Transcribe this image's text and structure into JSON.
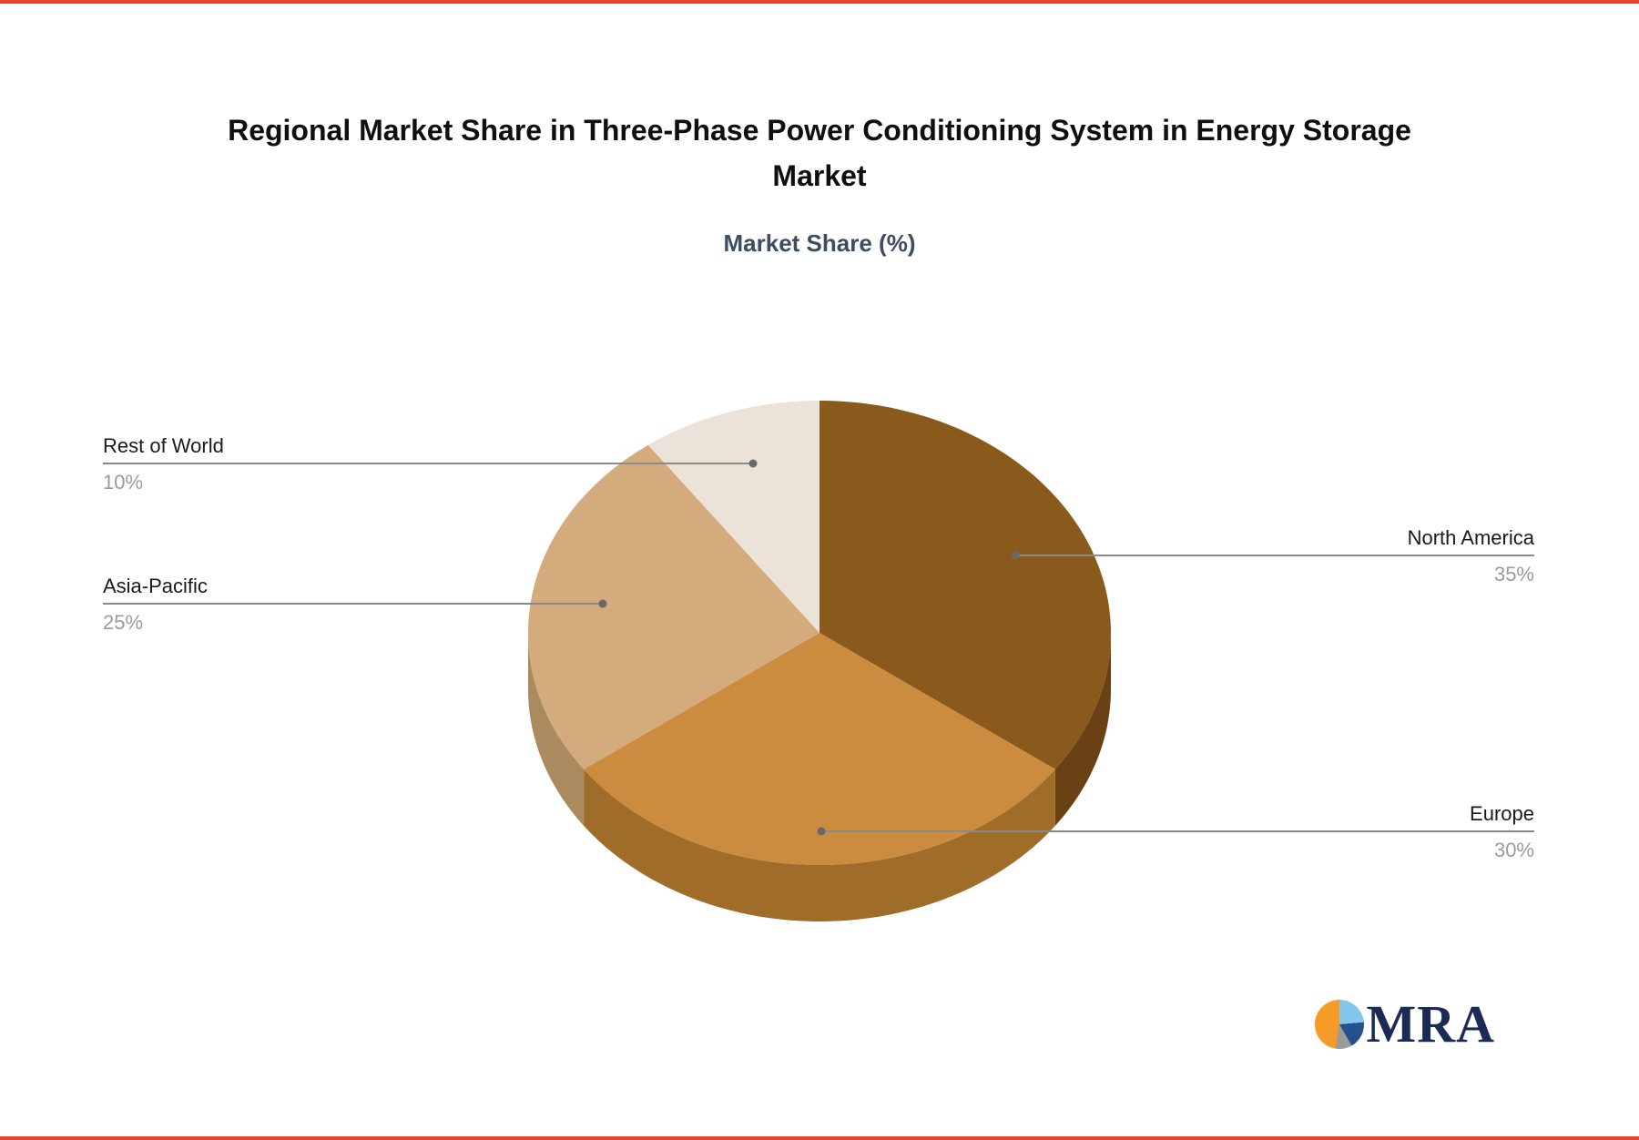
{
  "page": {
    "background": "#ffffff",
    "frame_color": "#e8432c"
  },
  "header": {
    "title_lines": [
      "Regional Market Share in Three-Phase Power Conditioning System in Energy Storage",
      "Market"
    ],
    "title_full": "Regional Market Share in Three-Phase Power Conditioning System in Energy Storage Market",
    "subtitle": "Market Share (%)",
    "subtitle_color": "#3d4c63",
    "title_color": "#0f0f0f"
  },
  "chart_data": {
    "type": "pie",
    "style": "3d",
    "title": "Regional Market Share in Three-Phase Power Conditioning System in Energy Storage Market",
    "subtitle": "Market Share (%)",
    "unit": "%",
    "labels": [
      "North America",
      "Europe",
      "Asia-Pacific",
      "Rest of World"
    ],
    "values": [
      35,
      30,
      25,
      10
    ],
    "display_values": [
      "35%",
      "30%",
      "25%",
      "10%"
    ],
    "slice_colors": [
      "#8a591c",
      "#cb8c3f",
      "#d3ab7d",
      "#ebe3d8"
    ],
    "slice_side_colors": [
      "#6a4114",
      "#a06c29",
      "#aa8a5e",
      "#d8cdbf"
    ],
    "start_angle_deg": -90,
    "direction": "clockwise",
    "legend": "none",
    "label_style": "callout-lines",
    "callout_line_color": "#8a8a8a",
    "callout_dot_color": "#696969",
    "label_name_color": "#1a1a1a",
    "label_value_color": "#9b9b9b"
  },
  "branding": {
    "logo_text": "MRA",
    "logo_text_color": "#1b2b55",
    "logo_icon": "pie-chart-icon",
    "icon_segments": [
      {
        "color": "#85c6ec",
        "from": 0,
        "to": 85
      },
      {
        "color": "#27508f",
        "from": 85,
        "to": 150
      },
      {
        "color": "#9b9b9b",
        "from": 150,
        "to": 190
      },
      {
        "color": "#f49b28",
        "from": 190,
        "to": 360
      }
    ]
  }
}
